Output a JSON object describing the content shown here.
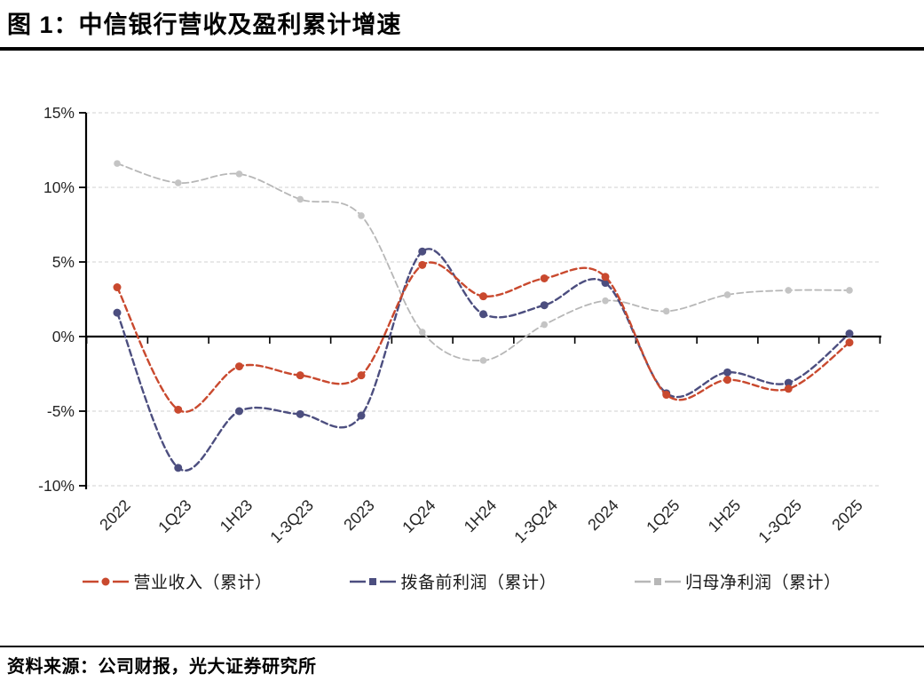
{
  "header": {
    "title": "图 1：中信银行营收及盈利累计增速"
  },
  "footer": {
    "source": "资料来源：公司财报，光大证券研究所"
  },
  "colors": {
    "revenue_line": "#c9492e",
    "ppop_line": "#4c4e7f",
    "net_profit_line": "#b7b7b7",
    "net_profit_marker": "#c4c4c4",
    "gridline": "#d9d9d9",
    "axis": "#000000",
    "tick_label": "#262626"
  },
  "chart_data": {
    "type": "line",
    "title": "中信银行营收及盈利累计增速",
    "categories": [
      "2022",
      "1Q23",
      "1H23",
      "1-3Q23",
      "2023",
      "1Q24",
      "1H24",
      "1-3Q24",
      "2024",
      "1Q25",
      "1H25",
      "1-3Q25",
      "2025"
    ],
    "series": [
      {
        "name": "营业收入（累计）",
        "color": "#c9492e",
        "marker": "circle",
        "marker_size": 4.5,
        "line_width": 2.4,
        "values": [
          3.3,
          -4.9,
          -2.0,
          -2.6,
          -2.6,
          4.8,
          2.7,
          3.9,
          4.0,
          -3.9,
          -2.9,
          -3.5,
          -0.4
        ]
      },
      {
        "name": "拨备前利润（累计）",
        "color": "#4c4e7f",
        "marker": "square",
        "marker_size": 4.5,
        "line_width": 2.4,
        "values": [
          1.6,
          -8.8,
          -5.0,
          -5.2,
          -5.3,
          5.7,
          1.5,
          2.1,
          3.6,
          -3.8,
          -2.4,
          -3.1,
          0.2
        ]
      },
      {
        "name": "归母净利润（累计）",
        "color": "#b7b7b7",
        "marker": "square",
        "marker_size": 3.8,
        "line_width": 1.8,
        "values": [
          11.6,
          10.3,
          10.9,
          9.2,
          8.1,
          0.3,
          -1.6,
          0.8,
          2.4,
          1.7,
          2.8,
          3.1,
          3.1
        ]
      }
    ],
    "xlabel": "",
    "ylabel": "",
    "ylim": [
      -10,
      15
    ],
    "yticks": [
      15,
      10,
      5,
      0,
      -5,
      -10
    ],
    "ytick_labels": [
      "15%",
      "10%",
      "5%",
      "0%",
      "-5%",
      "-10%"
    ],
    "grid": "horizontal-dashed",
    "line_style": "smooth-dashed",
    "legend_position": "bottom",
    "x_axis_cross": 0
  }
}
